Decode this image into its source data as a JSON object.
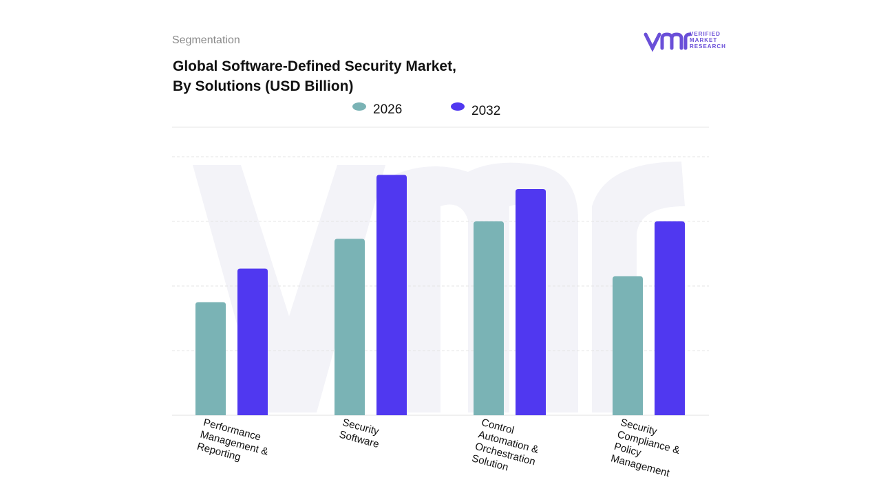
{
  "header": {
    "segment": "Segmentation",
    "logo_text": "VERIFIED\nMARKET\nRESEARCH"
  },
  "chart_data": {
    "type": "bar",
    "title": "Global Software-Defined Security Market,\nBy Solutions (USD Billion)",
    "categories": [
      "Performance\nManagement &\nReporting",
      "Security\nSoftware",
      "Control\nAutomation &\nOrchestration\nSolution",
      "Security\nCompliance &\nPolicy\nManagement"
    ],
    "series": [
      {
        "name": "2026",
        "color": "#7ab3b5",
        "values": [
          1.75,
          2.73,
          3.0,
          2.15
        ]
      },
      {
        "name": "2032",
        "color": "#5038f0",
        "values": [
          2.27,
          3.72,
          3.5,
          3.0
        ]
      }
    ],
    "ylim": [
      0,
      4
    ],
    "ygrid": [
      1,
      2,
      3,
      4
    ],
    "grid": true
  }
}
